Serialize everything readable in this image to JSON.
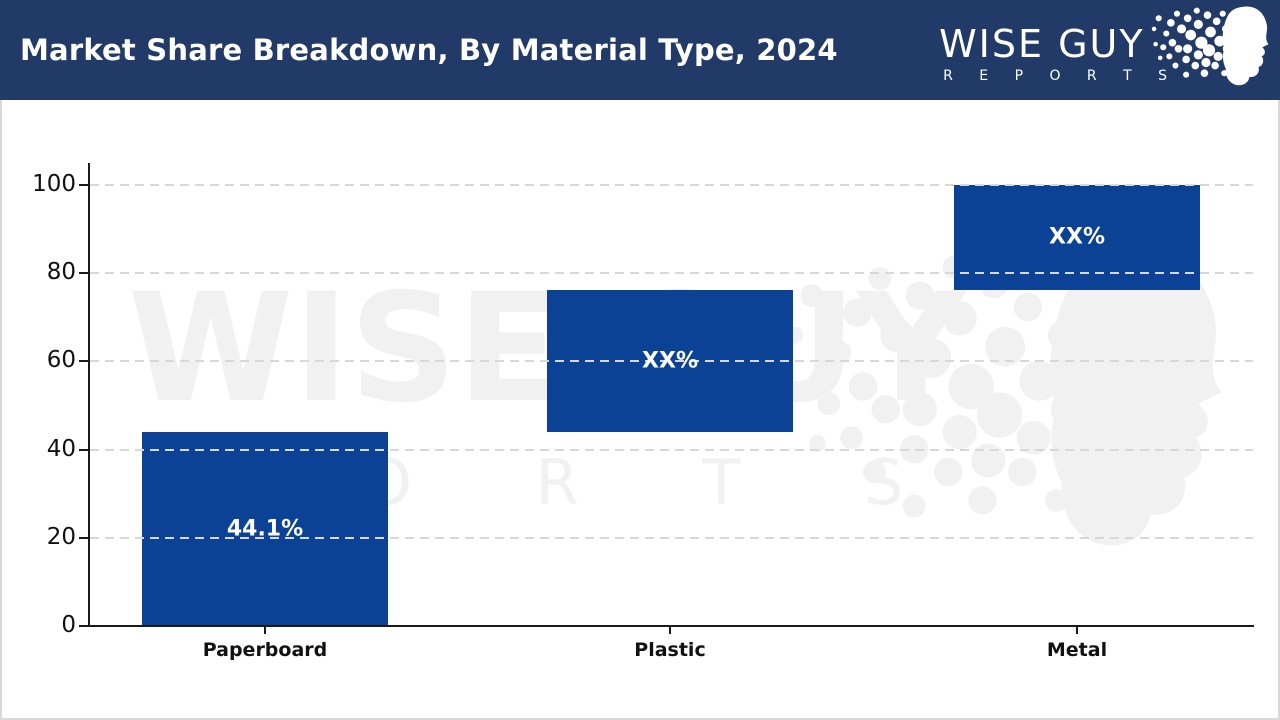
{
  "page": {
    "background": "#ffffff",
    "border_color": "#d9d9d9"
  },
  "header": {
    "background": "#213a67",
    "title": "Market Share Breakdown, By Material Type, 2024",
    "logo": {
      "wordmark": "WISE GUY",
      "reports": "R E P O R T S",
      "face_icon": "dotted-head-profile-icon"
    }
  },
  "watermark": {
    "wordmark": "WISE GUY",
    "reports": "P O R T S",
    "full_text": "WISE GUY REPORTS",
    "color": "#f1f1f2",
    "face_icon": "dotted-head-profile-icon"
  },
  "chart_data": {
    "type": "bar",
    "subtype": "floating-segment-waterfall",
    "title": "Market Share Breakdown, By Material Type, 2024",
    "categories": [
      "Paperboard",
      "Plastic",
      "Metal"
    ],
    "series": [
      {
        "name": "Market share (%)",
        "ranges": [
          [
            0,
            44.1
          ],
          [
            44.1,
            76.2
          ],
          [
            76.2,
            100
          ]
        ]
      }
    ],
    "bar_labels": [
      "44.1%",
      "XX%",
      "XX%"
    ],
    "y_ticks": [
      0,
      20,
      40,
      60,
      80,
      100
    ],
    "ylim": [
      0,
      105
    ],
    "xlabel": "",
    "ylabel": "",
    "grid": "horizontal dashed, drawn above bars",
    "legend_position": "none",
    "bar_color": "#0b4296",
    "bar_label_color": "#ffffff",
    "grid_color": "#d8d8d8",
    "axis_color": "#1a1a1a",
    "tick_label_color": "#111111"
  }
}
